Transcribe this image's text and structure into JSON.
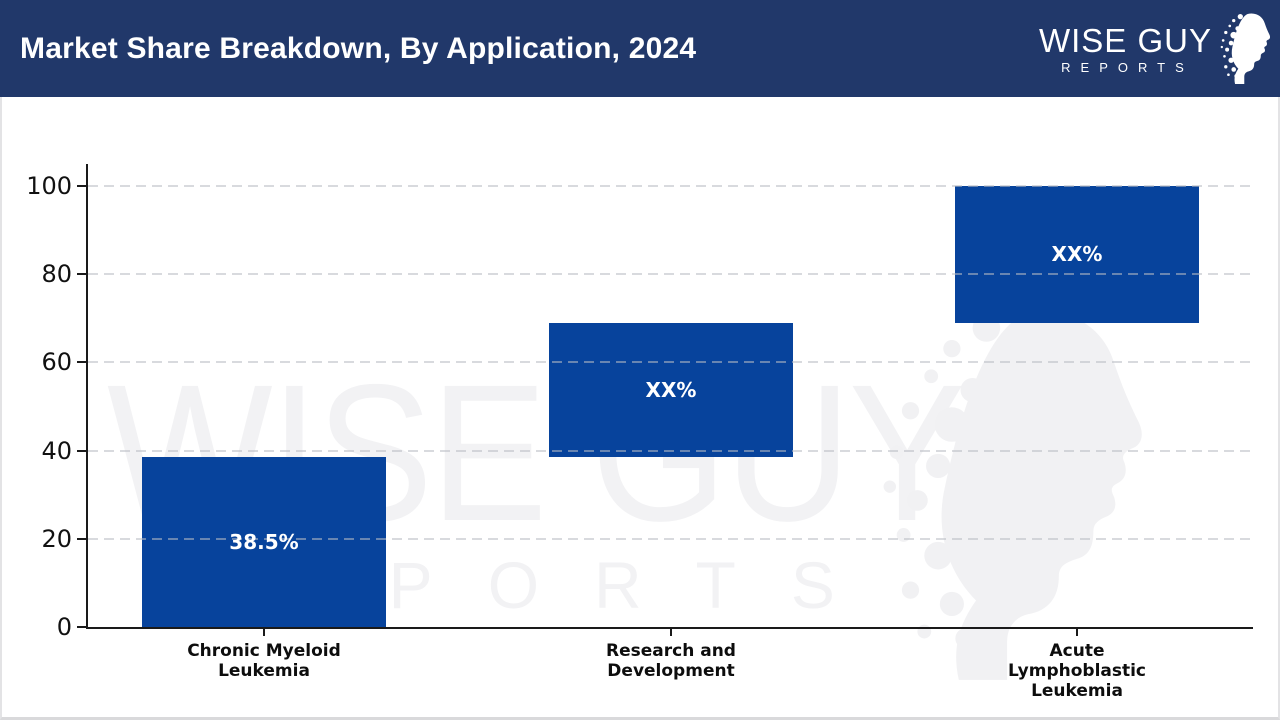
{
  "header": {
    "title": "Market Share Breakdown, By Application, 2024",
    "logo": {
      "wordmark": "WISE GUY",
      "subtitle": "REPORTS"
    }
  },
  "watermark": {
    "wordmark": "WISE GUY",
    "subtitle": "REPORTS"
  },
  "chart_data": {
    "type": "bar",
    "subtype": "waterfall",
    "title": "Market Share Breakdown, By Application, 2024",
    "categories": [
      "Chronic Myeloid Leukemia",
      "Research and Development",
      "Acute Lymphoblastic Leukemia"
    ],
    "category_lines": [
      [
        "Chronic Myeloid",
        "Leukemia"
      ],
      [
        "Research and",
        "Development"
      ],
      [
        "Acute",
        "Lymphoblastic",
        "Leukemia"
      ]
    ],
    "bars": [
      {
        "value_label": "38.5%",
        "start": 0,
        "end": 38.5
      },
      {
        "value_label": "XX%",
        "start": 38.5,
        "end": 69
      },
      {
        "value_label": "XX%",
        "start": 69,
        "end": 100
      }
    ],
    "yticks": [
      0,
      20,
      40,
      60,
      80,
      100
    ],
    "ylim": [
      0,
      105
    ],
    "grid": "dashed-horizontal",
    "legend": "none",
    "colors": {
      "bar": "#07439c",
      "bar_label": "#ffffff",
      "header_bg": "#21386a",
      "watermark": "#f2f2f4",
      "axis": "#1a1a1a",
      "gridline": "#e3e3e5"
    }
  }
}
